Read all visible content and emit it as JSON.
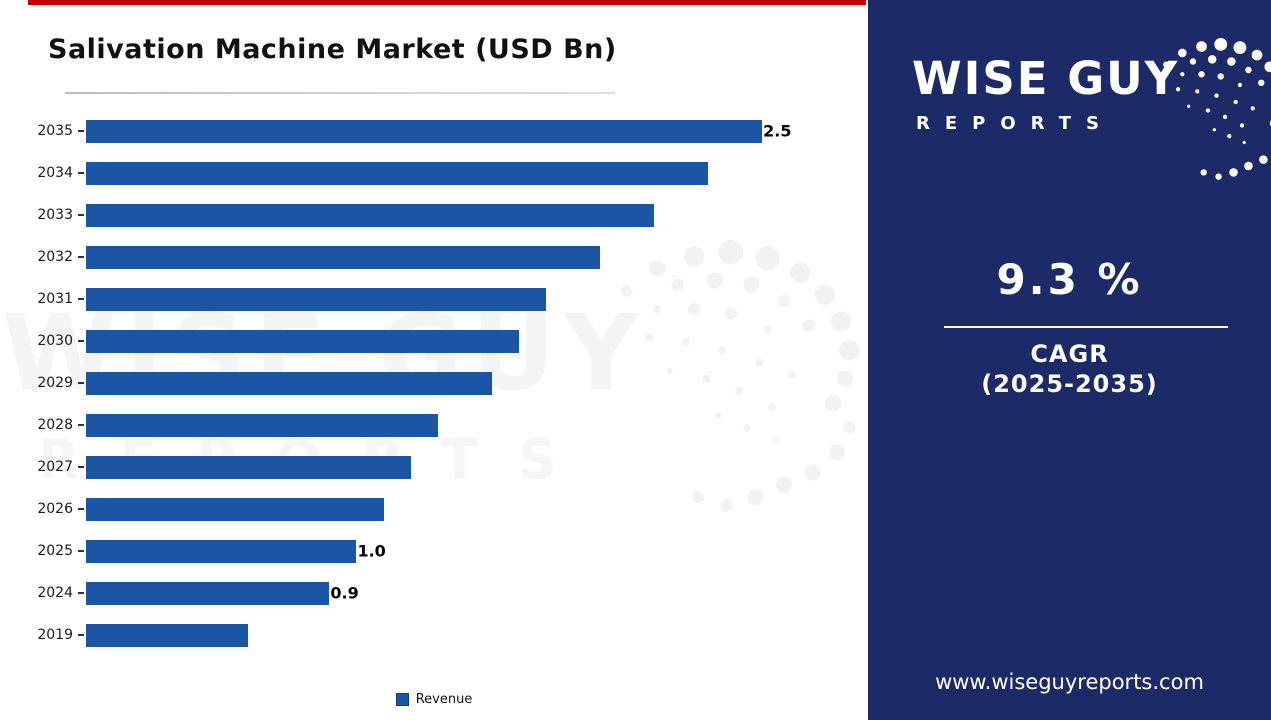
{
  "chart": {
    "title": "Salivation Machine Market (USD Bn)",
    "legend": {
      "label": "Revenue",
      "swatch_color": "#1b55a3"
    }
  },
  "chart_data": {
    "type": "bar",
    "orientation": "horizontal",
    "title": "Salivation Machine Market (USD Bn)",
    "categories": [
      "2035",
      "2034",
      "2033",
      "2032",
      "2031",
      "2030",
      "2029",
      "2028",
      "2027",
      "2026",
      "2025",
      "2024",
      "2019"
    ],
    "values": [
      2.5,
      2.3,
      2.1,
      1.9,
      1.7,
      1.6,
      1.5,
      1.3,
      1.2,
      1.1,
      1.0,
      0.9,
      0.6
    ],
    "bar_labels": [
      "2.5",
      "",
      "",
      "",
      "",
      "",
      "",
      "",
      "",
      "",
      "1.0",
      "0.9",
      ""
    ],
    "series_name": "Revenue",
    "xlabel": "",
    "ylabel": "",
    "xlim": [
      0,
      2.64
    ],
    "grid": false,
    "bar_color": "#1b55a3",
    "legend_position": "bottom-center"
  },
  "watermark": {
    "line1": "WISE GUY",
    "line2": "REPORTS"
  },
  "accent": {
    "top_bar_color": "#c40000"
  },
  "panel": {
    "background": "#1c2a68",
    "logo": {
      "line1": "WISE GUY",
      "line2": "REPORTS"
    },
    "cagr_value": "9.3 %",
    "cagr_label": "CAGR",
    "cagr_period": "(2025-2035)",
    "website": "www.wiseguyreports.com"
  }
}
